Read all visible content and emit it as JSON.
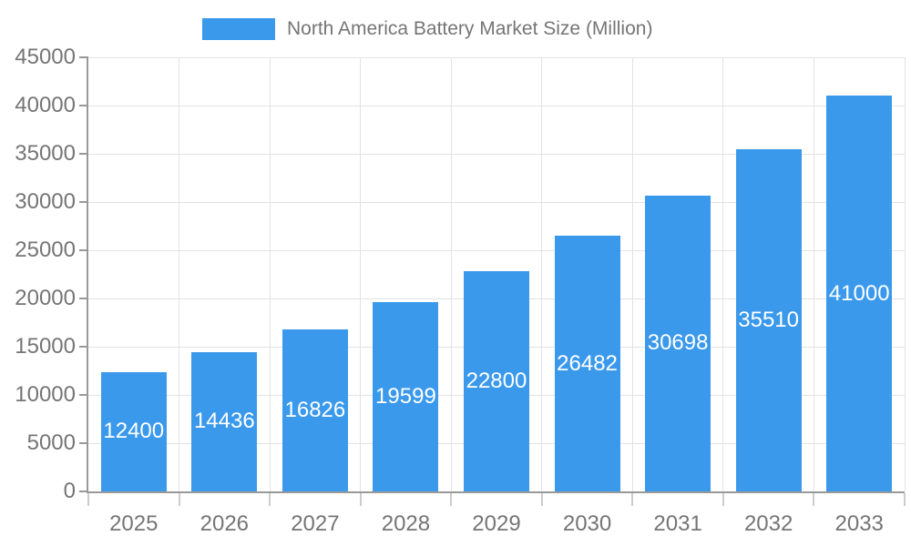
{
  "legend": {
    "label": "North America Battery Market Size (Million)"
  },
  "colors": {
    "bar": "#3b99ec",
    "value_label": "#ffffff",
    "axis_text": "#757575",
    "axis_line": "#999999",
    "x_tick": "#cccccc",
    "gridline": "#e3e3e3",
    "background": "#ffffff"
  },
  "chart_data": {
    "type": "bar",
    "title": "North America Battery Market Size (Million)",
    "series_name": "North America Battery Market Size (Million)",
    "categories": [
      "2025",
      "2026",
      "2027",
      "2028",
      "2029",
      "2030",
      "2031",
      "2032",
      "2033"
    ],
    "values": [
      12400,
      14436,
      16826,
      19599,
      22800,
      26482,
      30698,
      35510,
      41000
    ],
    "xlabel": "",
    "ylabel": "",
    "ylim": [
      0,
      45000
    ],
    "ytick_step": 5000,
    "ytick_labels": [
      "0",
      "5000",
      "10000",
      "15000",
      "20000",
      "25000",
      "30000",
      "35000",
      "40000",
      "45000"
    ],
    "grid": true,
    "legend_position": "top",
    "value_label_position": "inside-center"
  }
}
